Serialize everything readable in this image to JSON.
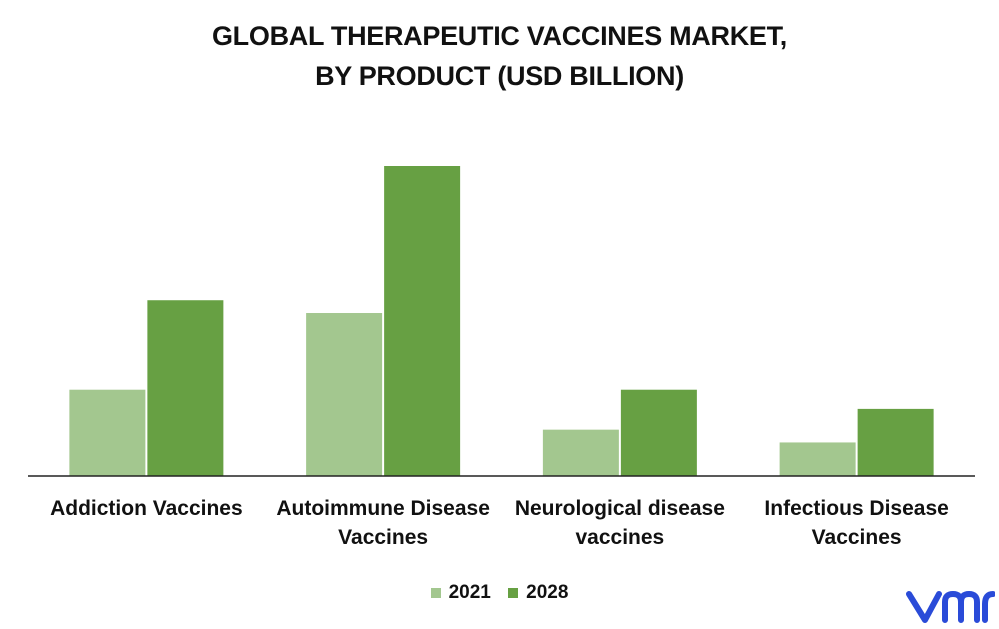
{
  "chart_data": {
    "type": "bar",
    "title_lines": [
      "GLOBAL THERAPEUTIC VACCINES MARKET,",
      "BY PRODUCT (USD BILLION)"
    ],
    "categories": [
      [
        "Addiction Vaccines"
      ],
      [
        "Autoimmune Disease",
        "Vaccines"
      ],
      [
        "Neurological disease",
        "vaccines"
      ],
      [
        "Infectious Disease",
        "Vaccines"
      ]
    ],
    "series": [
      {
        "name": "2021",
        "color": "#a3c78f",
        "values": [
          2.7,
          5.1,
          1.45,
          1.05
        ]
      },
      {
        "name": "2028",
        "color": "#67a043",
        "values": [
          5.5,
          9.7,
          2.7,
          2.1
        ]
      }
    ],
    "ylim": [
      0,
      10
    ],
    "grid": false,
    "legend": "bottom-center"
  },
  "logo": {
    "icon": "vmr-logo-icon",
    "color": "#2a4bd8"
  }
}
